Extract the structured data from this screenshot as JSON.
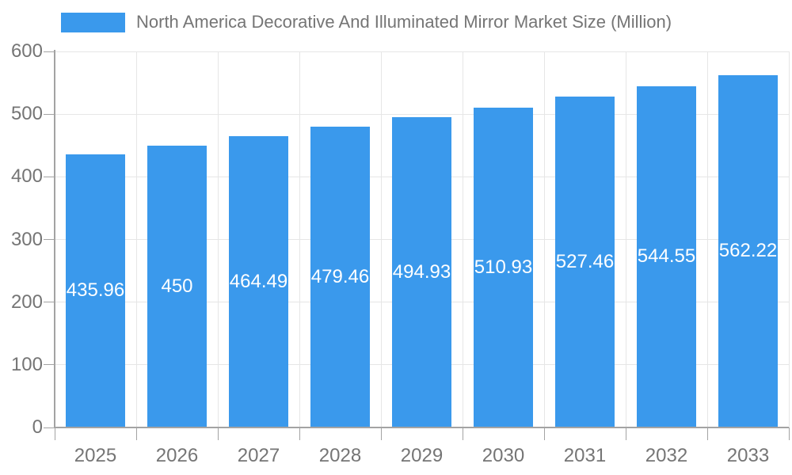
{
  "chart_data": {
    "type": "bar",
    "title": "North America Decorative And Illuminated Mirror Market Size (Million)",
    "categories": [
      "2025",
      "2026",
      "2027",
      "2028",
      "2029",
      "2030",
      "2031",
      "2032",
      "2033"
    ],
    "series": [
      {
        "name": "North America Decorative And Illuminated Mirror Market Size (Million)",
        "values": [
          435.96,
          450,
          464.49,
          479.46,
          494.93,
          510.93,
          527.46,
          544.55,
          562.22
        ]
      }
    ],
    "value_labels": [
      "435.96",
      "450",
      "464.49",
      "479.46",
      "494.93",
      "510.93",
      "527.46",
      "544.55",
      "562.22"
    ],
    "xlabel": "",
    "ylabel": "",
    "ylim": [
      0,
      600
    ],
    "yticks": [
      0,
      100,
      200,
      300,
      400,
      500,
      600
    ],
    "grid": true,
    "legend_position": "top-left",
    "colors": {
      "bar": "#3A99EC",
      "grid": "#E6E6E6",
      "axis": "#A3A3A3",
      "tick_text": "#757575",
      "data_label": "#FFFFFF",
      "background": "#FFFFFF"
    }
  }
}
